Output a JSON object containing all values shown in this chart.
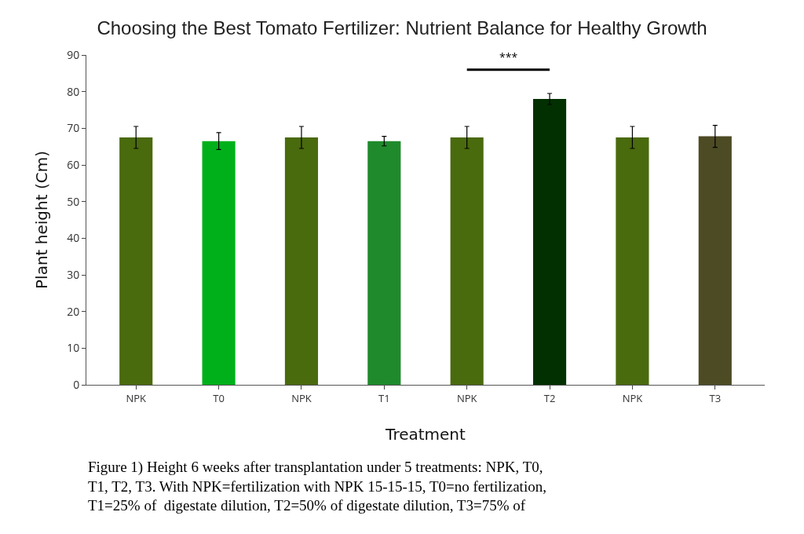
{
  "chart_data": {
    "type": "bar",
    "title": "Choosing the Best Tomato Fertilizer: Nutrient Balance for Healthy Growth",
    "xlabel": "Treatment",
    "ylabel": "Plant height (Cm)",
    "categories": [
      "NPK",
      "T0",
      "NPK",
      "T1",
      "NPK",
      "T2",
      "NPK",
      "T3"
    ],
    "values": [
      67.5,
      66.5,
      67.5,
      66.5,
      67.5,
      78,
      67.5,
      67.8
    ],
    "errors": [
      3,
      2.3,
      3,
      1.3,
      3,
      1.5,
      3,
      3
    ],
    "colors": [
      "#4a6a0e",
      "#00b01a",
      "#4a6a0e",
      "#1f8a2c",
      "#4a6a0e",
      "#023000",
      "#4a6a0e",
      "#4c4b24"
    ],
    "ylim": [
      0,
      90
    ],
    "yticks": [
      0,
      10,
      20,
      30,
      40,
      50,
      60,
      70,
      80,
      90
    ],
    "grid": false,
    "annotations": [
      "***",
      "Figure 1) Height 6 weeks after transplantation under 5 treatments: NPK, T0, T1, T2, T3. With NPK=fertilization with NPK 15-15-15, T0=no fertilization, T1=25% of  digestate dilution, T2=50% of digestate dilution, T3=75% of"
    ]
  }
}
